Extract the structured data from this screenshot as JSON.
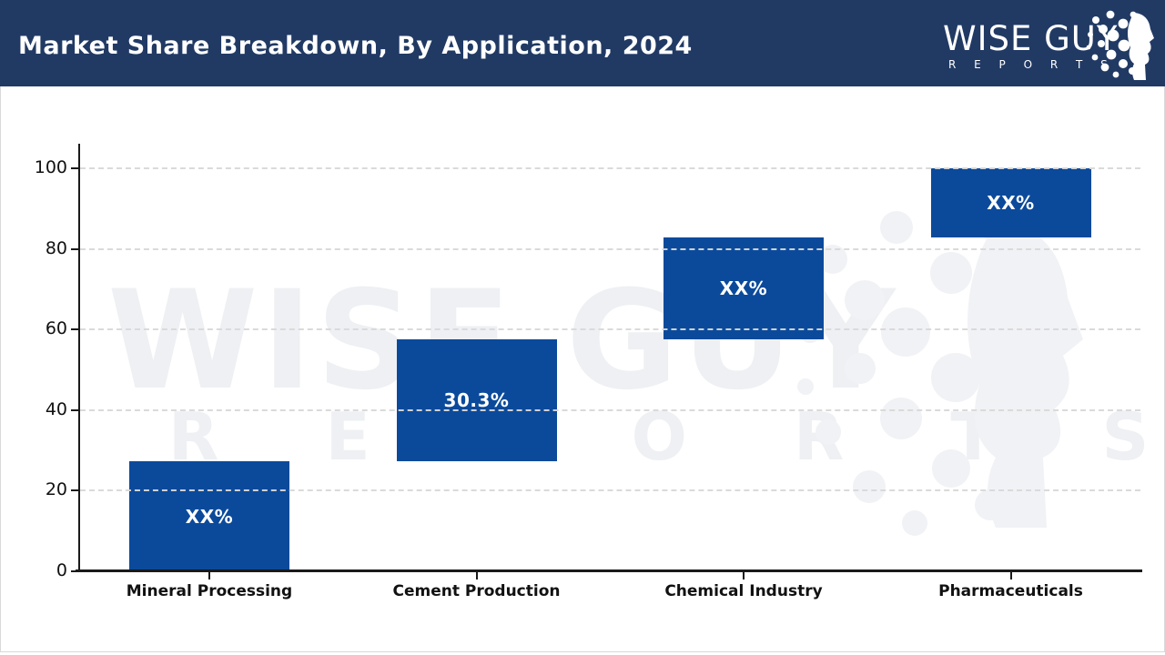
{
  "header": {
    "title": "Market Share Breakdown, By Application, 2024",
    "background_color": "#213a64",
    "logo": {
      "line1": "WISE GUY",
      "line2": "R E P O R T S"
    }
  },
  "watermark": {
    "line1": "WISE GUY",
    "line2": "R E P O R T S"
  },
  "chart_data": {
    "type": "bar",
    "variant": "floating-waterfall",
    "title": "Market Share Breakdown, By Application, 2024",
    "categories": [
      "Mineral Processing",
      "Cement Production",
      "Chemical Industry",
      "Pharmaceuticals"
    ],
    "segments": [
      {
        "category": "Mineral Processing",
        "start": 0,
        "end": 27.3,
        "label": "XX%"
      },
      {
        "category": "Cement Production",
        "start": 27.3,
        "end": 57.6,
        "label": "30.3%"
      },
      {
        "category": "Chemical Industry",
        "start": 57.6,
        "end": 82.9,
        "label": "XX%"
      },
      {
        "category": "Pharmaceuticals",
        "start": 82.9,
        "end": 100,
        "label": "XX%"
      }
    ],
    "yticks": [
      0,
      20,
      40,
      60,
      80,
      100
    ],
    "ylim": [
      0,
      105
    ],
    "xlabel": "",
    "ylabel": "",
    "grid": "horizontal-dashed",
    "gridline_color": "#d9d9d9",
    "legend": "none",
    "bar_color": "#0b4a9b",
    "bar_label_color": "#ffffff",
    "axis_color": "#1a1a1a"
  }
}
